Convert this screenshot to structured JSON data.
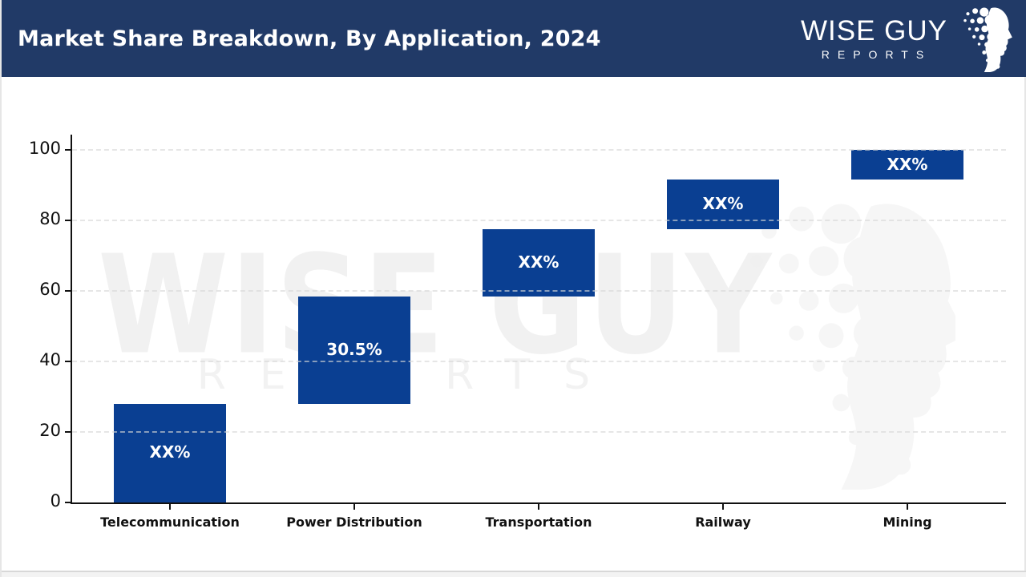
{
  "header": {
    "title": "Market Share Breakdown, By Application, 2024",
    "logo_line1": "WISE GUY",
    "logo_line2": "REPORTS"
  },
  "watermark": {
    "line1": "WISE GUY",
    "line2": "REPORTS"
  },
  "colors": {
    "header_bg": "#213a67",
    "bar_fill": "#0a3f92",
    "bar_label": "#ffffff",
    "gridline": "#d6d6d6",
    "axis": "#111111"
  },
  "chart_data": {
    "type": "bar",
    "subtype": "waterfall",
    "title": "Market Share Breakdown, By Application, 2024",
    "xlabel": "",
    "ylabel": "",
    "ylim": [
      0,
      100
    ],
    "yticks": [
      0,
      20,
      40,
      60,
      80,
      100
    ],
    "grid": "horizontal-dashed",
    "legend": "none",
    "categories": [
      "Telecommunication",
      "Power Distribution",
      "Transportation",
      "Railway",
      "Mining"
    ],
    "series": [
      {
        "name": "Market Share (%)",
        "segments": [
          {
            "category": "Telecommunication",
            "start": 0,
            "end": 28,
            "value": 28,
            "label": "XX%"
          },
          {
            "category": "Power Distribution",
            "start": 28,
            "end": 58.5,
            "value": 30.5,
            "label": "30.5%"
          },
          {
            "category": "Transportation",
            "start": 58.5,
            "end": 77.5,
            "value": 19,
            "label": "XX%"
          },
          {
            "category": "Railway",
            "start": 77.5,
            "end": 91.5,
            "value": 14,
            "label": "XX%"
          },
          {
            "category": "Mining",
            "start": 91.5,
            "end": 100,
            "value": 8.5,
            "label": "XX%"
          }
        ]
      }
    ]
  }
}
